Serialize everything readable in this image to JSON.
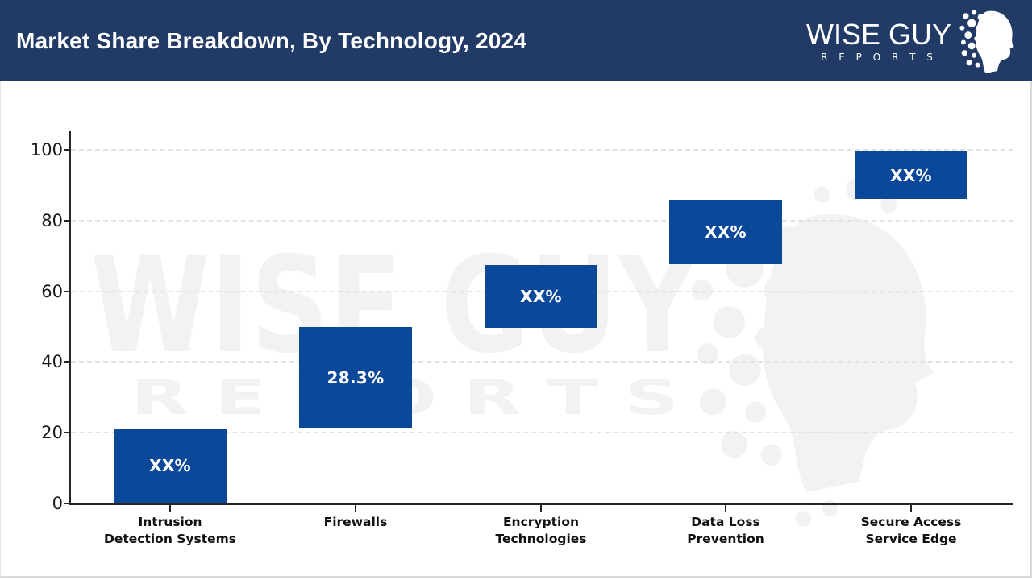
{
  "header": {
    "title": "Market Share Breakdown, By Technology, 2024",
    "logo": {
      "name_line": "WISE GUY",
      "sub_line": "R E P O R T S"
    }
  },
  "watermark": {
    "line1": "WISE GUY",
    "line2": "R E P O R T S"
  },
  "chart_data": {
    "type": "bar",
    "subtype": "waterfall",
    "title": "Market Share Breakdown, By Technology, 2024",
    "xlabel": "",
    "ylabel": "",
    "ylim": [
      0,
      105
    ],
    "yticks": [
      0,
      20,
      40,
      60,
      80,
      100
    ],
    "grid": "horizontal-dashed",
    "legend": "none",
    "bar_color": "#0b4899",
    "categories": [
      "Intrusion Detection Systems",
      "Firewalls",
      "Encryption Technologies",
      "Data Loss Prevention",
      "Secure Access Service Edge"
    ],
    "bars": [
      {
        "category_lines": [
          "Intrusion",
          "Detection Systems"
        ],
        "start": 0,
        "end": 21.2,
        "label": "XX%"
      },
      {
        "category_lines": [
          "Firewalls"
        ],
        "start": 21.5,
        "end": 49.8,
        "label": "28.3%"
      },
      {
        "category_lines": [
          "Encryption",
          "Technologies"
        ],
        "start": 49.6,
        "end": 67.4,
        "label": "XX%"
      },
      {
        "category_lines": [
          "Data Loss",
          "Prevention"
        ],
        "start": 67.6,
        "end": 85.9,
        "label": "XX%"
      },
      {
        "category_lines": [
          "Secure Access",
          "Service Edge"
        ],
        "start": 86.1,
        "end": 99.6,
        "label": "XX%"
      }
    ]
  },
  "colors": {
    "header_bg": "#213a66",
    "bar": "#0b4899",
    "watermark": "#f2f2f3",
    "grid": "#e2e2e2",
    "axis": "#262626",
    "border": "#d9d9d9"
  }
}
